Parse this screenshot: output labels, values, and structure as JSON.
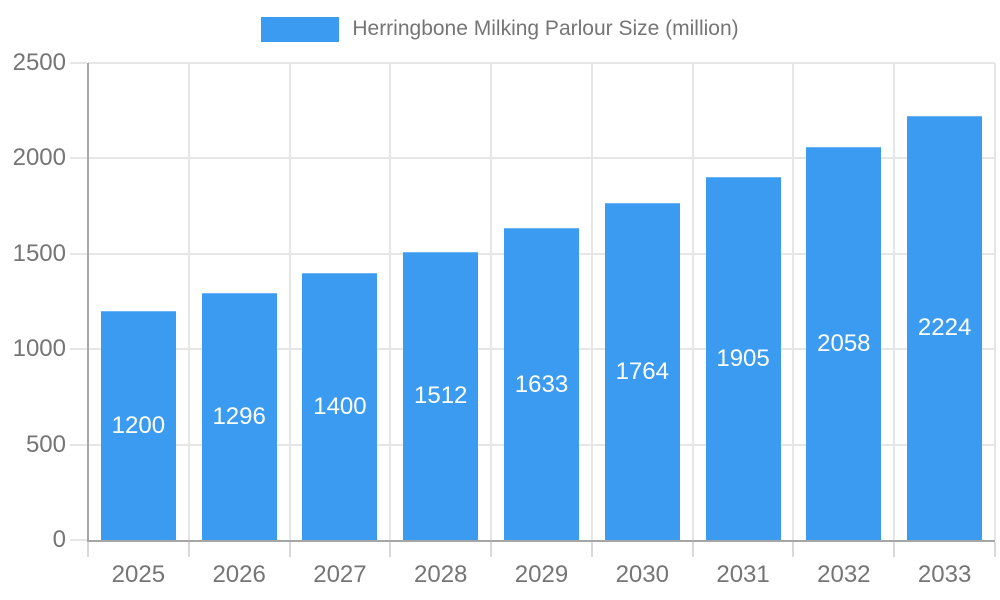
{
  "chart_data": {
    "type": "bar",
    "title": "",
    "legend": "Herringbone Milking Parlour Size (million)",
    "legend_position": "top-center",
    "categories": [
      "2025",
      "2026",
      "2027",
      "2028",
      "2029",
      "2030",
      "2031",
      "2032",
      "2033"
    ],
    "values": [
      1200,
      1296,
      1400,
      1512,
      1633,
      1764,
      1905,
      2058,
      2224
    ],
    "value_labels_shown": true,
    "xlabel": "",
    "ylabel": "",
    "ylim": [
      0,
      2500
    ],
    "yticks": [
      0,
      500,
      1000,
      1500,
      2000,
      2500
    ],
    "grid": "horizontal and vertical",
    "colors": {
      "bar": "#3b9bf1",
      "value_label": "#ffffff",
      "axis_text": "#757575",
      "gridline": "#e6e6e6",
      "axis_line": "#a6a6a6",
      "background": "#ffffff"
    }
  }
}
